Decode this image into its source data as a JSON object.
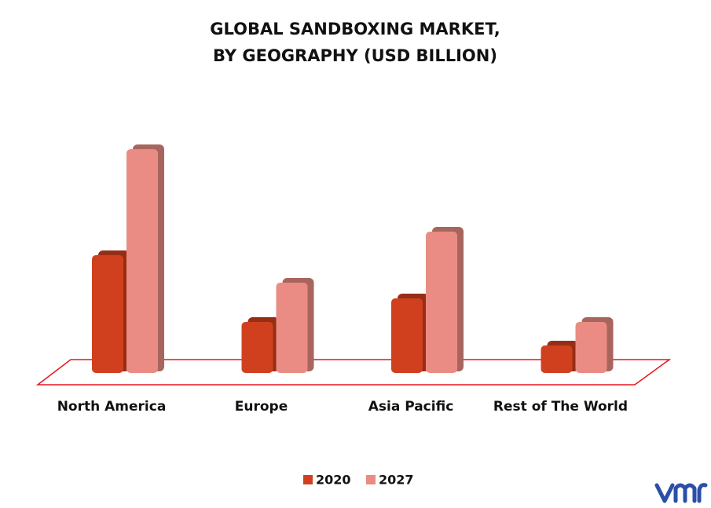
{
  "chart_data": {
    "type": "bar",
    "title": [
      "GLOBAL SANDBOXING MARKET,",
      "BY GEOGRAPHY (USD BILLION)"
    ],
    "categories": [
      "North America",
      "Europe",
      "Asia Pacific",
      "Rest of The World"
    ],
    "series": [
      {
        "name": "2020",
        "color": "#d0401f",
        "values": [
          1.5,
          0.65,
          0.95,
          0.35
        ]
      },
      {
        "name": "2027",
        "color": "#ea8c83",
        "values": [
          2.85,
          1.15,
          1.8,
          0.65
        ]
      }
    ],
    "legend": "bottom"
  }
}
